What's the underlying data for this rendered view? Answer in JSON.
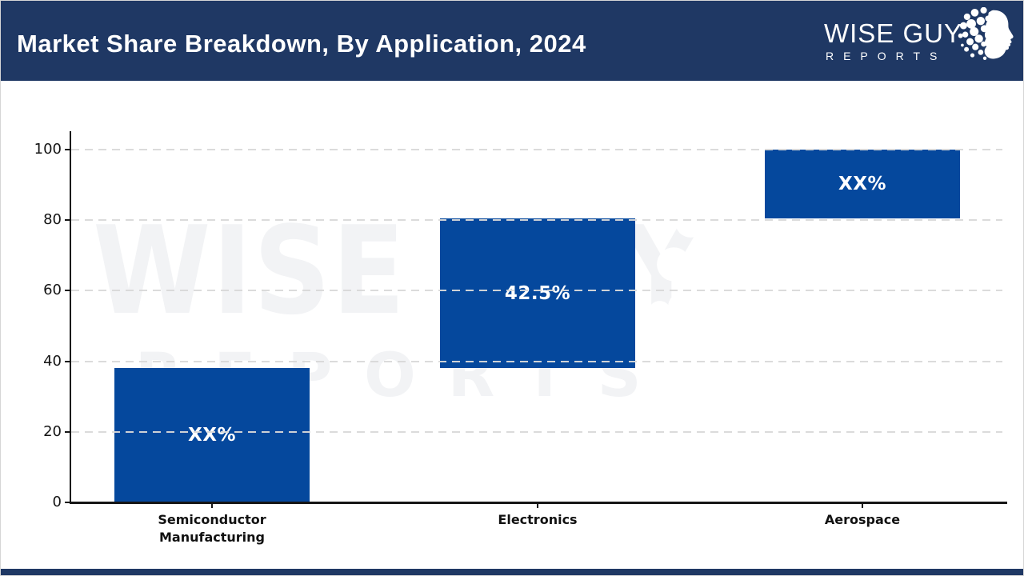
{
  "header": {
    "title": "Market Share Breakdown, By Application, 2024",
    "brand_name": "WISE GUY",
    "brand_sub": "REPORTS",
    "bg_color": "#1f3864"
  },
  "watermark": {
    "line1": "WISE GUY",
    "line2": "REPORTS"
  },
  "chart_data": {
    "type": "bar",
    "subtype": "floating-stacked-waterfall",
    "title": "Market Share Breakdown, By Application, 2024",
    "categories": [
      "Semiconductor Manufacturing",
      "Electronics",
      "Aerospace"
    ],
    "segments": [
      {
        "category": "Semiconductor Manufacturing",
        "start": 0,
        "end": 38,
        "label": "XX%",
        "value_estimate": 38
      },
      {
        "category": "Electronics",
        "start": 38,
        "end": 80.5,
        "label": "42.5%",
        "value_estimate": 42.5
      },
      {
        "category": "Aerospace",
        "start": 80.5,
        "end": 100,
        "label": "XX%",
        "value_estimate": 19.5
      }
    ],
    "yticks": [
      0,
      20,
      40,
      60,
      80,
      100
    ],
    "ylim": [
      0,
      105
    ],
    "xlabel": "",
    "ylabel": "",
    "grid": {
      "axis": "y",
      "style": "dashed",
      "color": "#d9d9d9",
      "drawn_over_bars": true
    },
    "legend_position": "none",
    "bar_color": "#05489d",
    "bar_label_color": "#ffffff"
  },
  "axes": {
    "y_tick_labels": [
      "0",
      "20",
      "40",
      "60",
      "80",
      "100"
    ],
    "x_tick_lines": [
      [
        "Semiconductor",
        "Manufacturing"
      ],
      [
        "Electronics"
      ],
      [
        "Aerospace"
      ]
    ]
  },
  "colors": {
    "header_bg": "#1f3864",
    "footer_bg": "#1f3864",
    "bar": "#05489d",
    "axis": "#151515",
    "grid": "#d9d9d9",
    "watermark": "#f2f3f5"
  }
}
